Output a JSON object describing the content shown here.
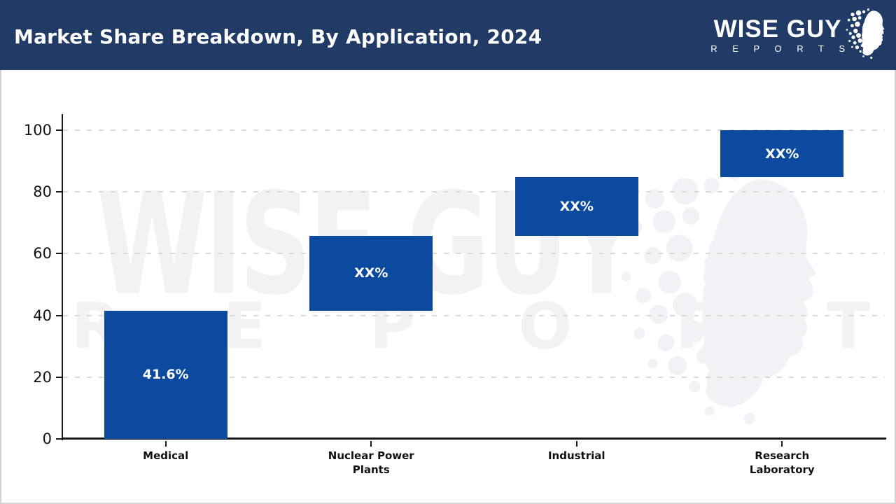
{
  "header": {
    "title": "Market Share Breakdown, By Application, 2024",
    "bg_color": "#213a66",
    "logo": {
      "line1": "WISE GUY",
      "line2": "R E P O R T S"
    }
  },
  "watermark": {
    "line1": "WISE GUY",
    "line2": "R E P O R T S"
  },
  "chart_data": {
    "type": "bar",
    "subtype": "waterfall-floating-segments",
    "title": "Market Share Breakdown, By Application, 2024",
    "categories": [
      "Medical",
      "Nuclear Power\nPlants",
      "Industrial",
      "Research\nLaboratory"
    ],
    "bars": [
      {
        "category": "Medical",
        "start": 0,
        "end": 41.6,
        "label": "41.6%"
      },
      {
        "category": "Nuclear Power Plants",
        "start": 41.6,
        "end": 65.7,
        "label": "XX%"
      },
      {
        "category": "Industrial",
        "start": 65.7,
        "end": 84.7,
        "label": "XX%"
      },
      {
        "category": "Research Laboratory",
        "start": 84.7,
        "end": 100,
        "label": "XX%"
      }
    ],
    "ylim": [
      0,
      100
    ],
    "yticks": [
      0,
      20,
      40,
      60,
      80,
      100
    ],
    "xlabel": "",
    "ylabel": "",
    "grid": "horizontal-dashed",
    "legend": "none",
    "bar_width_fraction": 0.6,
    "colors": {
      "bar": "#0b4a9e",
      "bar_label": "#ffffff",
      "axis": "#1a1a1a",
      "gridline": "#d9d9d9",
      "tick_label": "#111111"
    }
  }
}
